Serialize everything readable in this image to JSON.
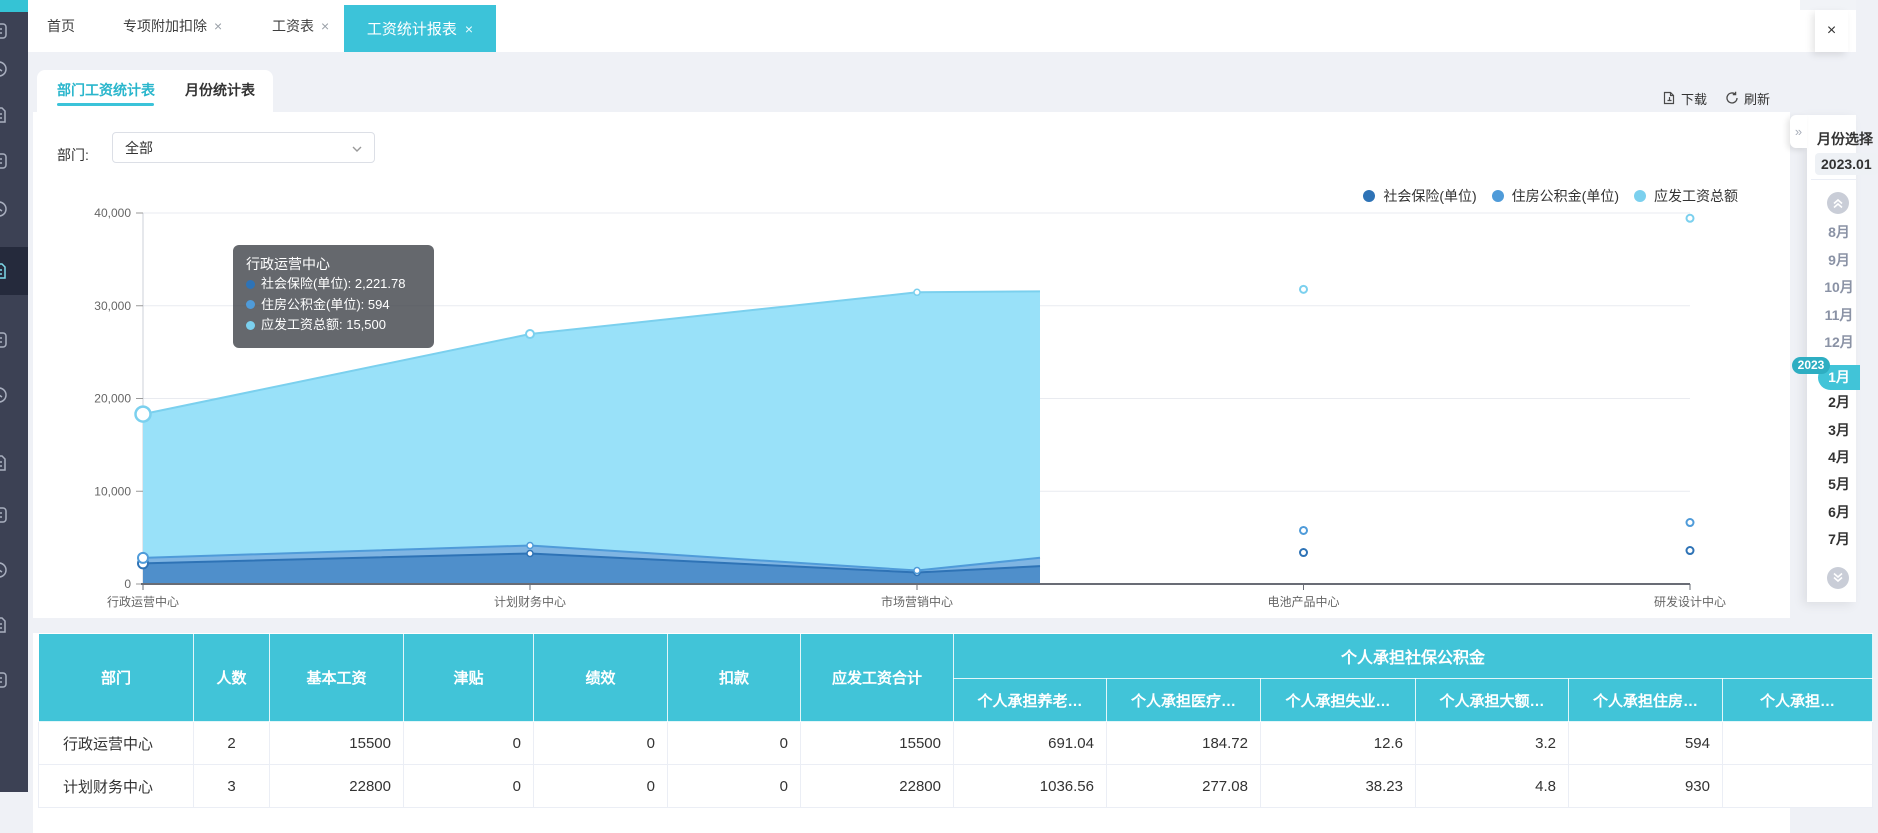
{
  "icons": {
    "close": "×",
    "chevron_right_double": "»"
  },
  "sidebar": {
    "icons": [
      "home",
      "profile",
      "voucher",
      "clock",
      "ledger",
      "salary",
      "assets",
      "report",
      "invoice",
      "tax",
      "checkout",
      "settings",
      "docs"
    ],
    "active_index": 5
  },
  "topbar": {
    "tabs": [
      {
        "label": "首页",
        "closable": false,
        "active": false
      },
      {
        "label": "专项附加扣除",
        "closable": true,
        "active": false
      },
      {
        "label": "工资表",
        "closable": true,
        "active": false
      },
      {
        "label": "工资统计报表",
        "closable": true,
        "active": true
      }
    ]
  },
  "toolbar": {
    "download_label": "下载",
    "refresh_label": "刷新"
  },
  "report_tabs": {
    "active": "部门工资统计表",
    "inactive": "月份统计表"
  },
  "filter": {
    "label": "部门:",
    "value": "全部"
  },
  "chart_data": {
    "type": "area",
    "stacked": true,
    "categories": [
      "行政运营中心",
      "计划财务中心",
      "市场营销中心",
      "电池产品中心",
      "研发设计中心"
    ],
    "series": [
      {
        "name": "社会保险(单位)",
        "values": [
          2221.78,
          3290,
          1240,
          3390,
          3610
        ],
        "color": "#2E73B6",
        "fill": "#4F8FCB"
      },
      {
        "name": "住房公积金(单位)",
        "values": [
          594,
          860,
          210,
          2380,
          3020
        ],
        "color": "#4F9BD9",
        "fill": "#7FB5E3"
      },
      {
        "name": "应发工资总额",
        "values": [
          15500,
          22800,
          30000,
          26000,
          32800
        ],
        "color": "#7BD0EE",
        "fill": "#99E1F9"
      }
    ],
    "ylim": [
      0,
      40000
    ],
    "y_ticks": [
      "0",
      "10,000",
      "20,000",
      "30,000",
      "40,000"
    ],
    "legend_position": "top-right",
    "grid": true,
    "note": "area fill only drawn partway between 3rd and 4th category (render caught mid-animation); categories 4-5 show dots only"
  },
  "tooltip": {
    "title": "行政运营中心",
    "rows": [
      {
        "label": "社会保险(单位)",
        "value": "2,221.78"
      },
      {
        "label": "住房公积金(单位)",
        "value": "594"
      },
      {
        "label": "应发工资总额",
        "value": "15,500"
      }
    ]
  },
  "month_panel": {
    "title": "月份选择",
    "period": "2023.01",
    "year_badge": "2023",
    "months_before": [
      "8月",
      "9月",
      "10月",
      "11月",
      "12月"
    ],
    "selected": "1月",
    "months_after": [
      "2月",
      "3月",
      "4月",
      "5月",
      "6月",
      "7月"
    ]
  },
  "table": {
    "group_header": "个人承担社保公积金",
    "columns": [
      "部门",
      "人数",
      "基本工资",
      "津贴",
      "绩效",
      "扣款",
      "应发工资合计"
    ],
    "sub_columns": [
      "个人承担养老…",
      "个人承担医疗…",
      "个人承担失业…",
      "个人承担大额…",
      "个人承担住房…",
      "个人承担…"
    ],
    "rows": [
      [
        "行政运营中心",
        "2",
        "15500",
        "0",
        "0",
        "0",
        "15500",
        "691.04",
        "184.72",
        "12.6",
        "3.2",
        "594",
        ""
      ],
      [
        "计划财务中心",
        "3",
        "22800",
        "0",
        "0",
        "0",
        "22800",
        "1036.56",
        "277.08",
        "38.23",
        "4.8",
        "930",
        ""
      ]
    ]
  }
}
